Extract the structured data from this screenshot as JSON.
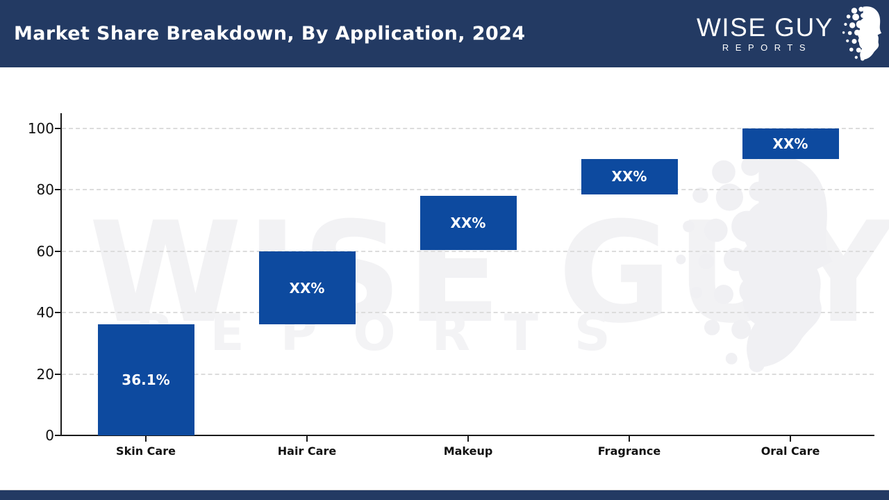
{
  "header": {
    "title": "Market Share Breakdown, By Application, 2024",
    "logo": {
      "line1": "WISE GUY",
      "line2": "REPORTS"
    }
  },
  "watermark": {
    "line1": "WISE GUY",
    "line2": "REPORTS"
  },
  "colors": {
    "header_bg": "#233a63",
    "footer_bg": "#233a63",
    "bar": "#0d4a9f",
    "gridline": "#dcdcdc",
    "axis": "#1a1a1a",
    "bar_label": "#ffffff",
    "watermark": "#f2f2f4"
  },
  "chart_data": {
    "type": "bar",
    "subtype": "waterfall",
    "title": "Market Share Breakdown, By Application, 2024",
    "categories": [
      "Skin Care",
      "Hair Care",
      "Makeup",
      "Fragrance",
      "Oral Care"
    ],
    "segments": [
      {
        "category": "Skin Care",
        "start": 0,
        "end": 36.1,
        "label": "36.1%"
      },
      {
        "category": "Hair Care",
        "start": 36.1,
        "end": 60,
        "label": "XX%"
      },
      {
        "category": "Makeup",
        "start": 60.3,
        "end": 78,
        "label": "XX%"
      },
      {
        "category": "Fragrance",
        "start": 78.6,
        "end": 90,
        "label": "XX%"
      },
      {
        "category": "Oral Care",
        "start": 90,
        "end": 100,
        "label": "XX%"
      }
    ],
    "ylim": [
      0,
      105
    ],
    "yticks": [
      0,
      20,
      40,
      60,
      80,
      100
    ],
    "xlabel": "",
    "ylabel": "",
    "grid": "horizontal-dashed",
    "legend": "none"
  }
}
